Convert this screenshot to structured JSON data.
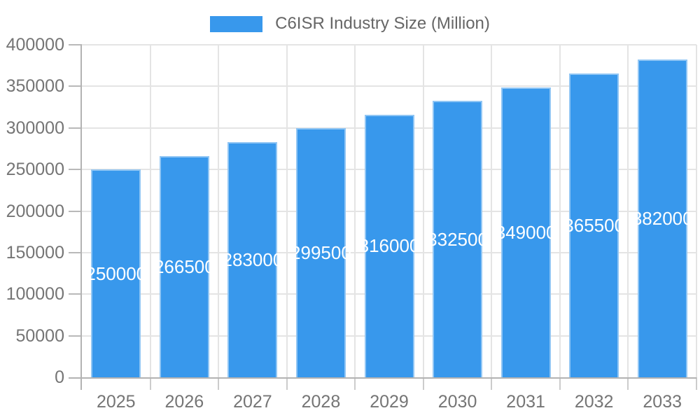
{
  "chart_data": {
    "type": "bar",
    "title": "C6ISR Industry Size (Million)",
    "legend": {
      "position": "top",
      "label": "C6ISR Industry Size (Million)"
    },
    "categories": [
      "2025",
      "2026",
      "2027",
      "2028",
      "2029",
      "2030",
      "2031",
      "2032",
      "2033"
    ],
    "series": [
      {
        "name": "C6ISR Industry Size (Million)",
        "values": [
          250000,
          266500,
          283000,
          299500,
          316000,
          332500,
          349000,
          365500,
          382000
        ]
      }
    ],
    "value_labels": [
      "250000",
      "266500",
      "283000",
      "299500",
      "316000",
      "332500",
      "349000",
      "365500",
      "382000"
    ],
    "xlabel": "",
    "ylabel": "",
    "ylim": [
      0,
      400000
    ],
    "yticks": [
      0,
      50000,
      100000,
      150000,
      200000,
      250000,
      300000,
      350000,
      400000
    ],
    "ytick_labels": [
      "0",
      "50000",
      "100000",
      "150000",
      "200000",
      "250000",
      "300000",
      "350000",
      "400000"
    ],
    "grid": true,
    "legend_position": "top",
    "colors": {
      "bar": "#3898EC",
      "bar_border": "rgba(255,255,255,0.45)",
      "grid_line": "#E4E4E4",
      "axis_line": "#B3B3B3",
      "y_tick_mark": "#B9B9B9",
      "x_tick_mark": "#CCCCCC",
      "axis_text": "#757575",
      "legend_text": "#666666",
      "value_text": "#FFFFFF",
      "background": "#FFFFFF"
    }
  }
}
